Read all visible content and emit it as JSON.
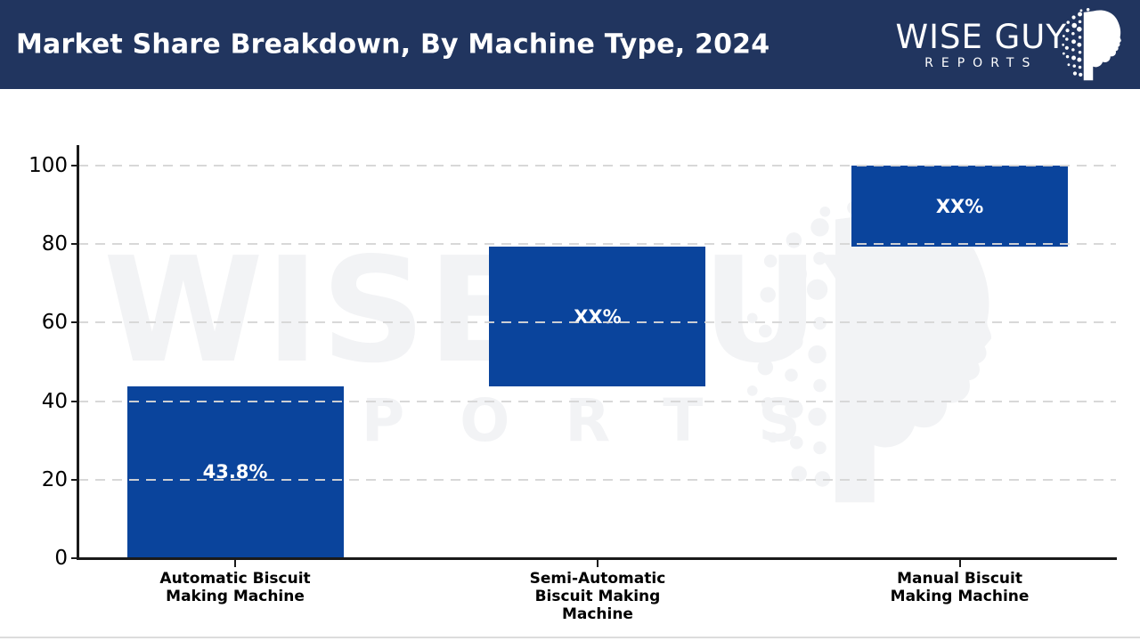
{
  "header": {
    "title": "Market Share Breakdown, By Machine Type, 2024",
    "logo": {
      "line1": "WISE GUY",
      "line2": "REPORTS"
    }
  },
  "watermark": {
    "line1": "WISE GUY",
    "line2": "REPORTS"
  },
  "chart_data": {
    "type": "bar",
    "variant": "floating-waterfall",
    "title": "Market Share Breakdown, By Machine Type, 2024",
    "categories": [
      "Automatic Biscuit Making Machine",
      "Semi-Automatic Biscuit Making Machine",
      "Manual Biscuit Making Machine"
    ],
    "bars": [
      {
        "category": "Automatic Biscuit Making Machine",
        "category_lines": [
          "Automatic Biscuit",
          "Making Machine"
        ],
        "start": 0,
        "end": 43.8,
        "label": "43.8%"
      },
      {
        "category": "Semi-Automatic Biscuit Making Machine",
        "category_lines": [
          "Semi-Automatic",
          "Biscuit Making",
          "Machine"
        ],
        "start": 43.8,
        "end": 79.3,
        "label": "XX%"
      },
      {
        "category": "Manual Biscuit Making Machine",
        "category_lines": [
          "Manual Biscuit",
          "Making Machine"
        ],
        "start": 79.3,
        "end": 100,
        "label": "XX%"
      }
    ],
    "y_ticks": [
      0,
      20,
      40,
      60,
      80,
      100
    ],
    "ylim": [
      0,
      105
    ],
    "xlabel": "",
    "ylabel": "",
    "grid": {
      "horizontal": true,
      "style": "dashed"
    },
    "legend": null,
    "colors": {
      "bar": "#0a449c",
      "bar_label": "#ffffff",
      "grid": "#d8d8d8",
      "axis": "#1a1a1a",
      "header_bg": "#21355f",
      "watermark": "#f2f3f5"
    }
  }
}
